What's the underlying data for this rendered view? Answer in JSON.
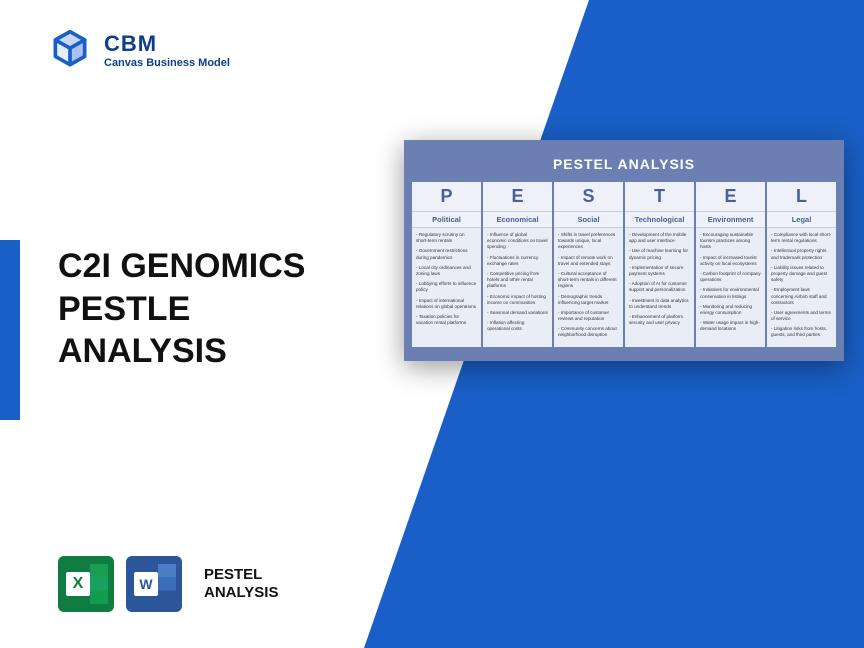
{
  "colors": {
    "brand_blue": "#1a5fc7",
    "logo_blue": "#0f3d8a",
    "card_bg": "#6b7fb3",
    "col_bg": "#e9edf5",
    "col_header_bg": "#eef1f7",
    "col_text": "#4a5f99",
    "excel_green": "#107c41",
    "word_blue": "#2b579a"
  },
  "logo": {
    "brand": "CBM",
    "subtitle": "Canvas Business Model"
  },
  "title": {
    "line1": "C2I GENOMICS",
    "line2": "PESTLE",
    "line3": "ANALYSIS"
  },
  "footer": {
    "line1": "PESTEL",
    "line2": "ANALYSIS"
  },
  "card": {
    "title": "PESTEL ANALYSIS",
    "columns": [
      {
        "letter": "P",
        "category": "Political",
        "items": [
          "Regulatory scrutiny on short-term rentals",
          "Government restrictions during pandemics",
          "Local city ordinances and zoning laws",
          "Lobbying efforts to influence policy",
          "Impact of international relations on global operations",
          "Taxation policies for vacation rental platforms"
        ]
      },
      {
        "letter": "E",
        "category": "Economical",
        "items": [
          "Influence of global economic conditions on travel spending",
          "Fluctuations in currency exchange rates",
          "Competitive pricing from hotels and other rental platforms",
          "Economic impact of hosting income on communities",
          "Seasonal demand variations",
          "Inflation affecting operational costs"
        ]
      },
      {
        "letter": "S",
        "category": "Social",
        "items": [
          "Shifts in travel preferences towards unique, local experiences",
          "Impact of remote work on travel and extended stays",
          "Cultural acceptance of short-term rentals in different regions",
          "Demographic trends influencing target market",
          "Importance of customer reviews and reputation",
          "Community concerns about neighborhood disruption"
        ]
      },
      {
        "letter": "T",
        "category": "Technological",
        "items": [
          "Development of the mobile app and user interface",
          "Use of machine learning for dynamic pricing",
          "Implementation of secure payment systems",
          "Adoption of AI for customer support and personalization",
          "Investment in data analytics to understand trends",
          "Enhancement of platform security and user privacy"
        ]
      },
      {
        "letter": "E",
        "category": "Environment",
        "items": [
          "Encouraging sustainable tourism practices among hosts",
          "Impact of increased tourist activity on local ecosystems",
          "Carbon footprint of company operations",
          "Initiatives for environmental conservation in listings",
          "Monitoring and reducing energy consumption",
          "Water usage impact in high-demand locations"
        ]
      },
      {
        "letter": "L",
        "category": "Legal",
        "items": [
          "Compliance with local short-term rental regulations",
          "Intellectual property rights and trademark protection",
          "Liability issues related to property damage and guest safety",
          "Employment laws concerning Airbnb staff and contractors",
          "User agreements and terms of service",
          "Litigation risks from hosts, guests, and third parties"
        ]
      }
    ]
  }
}
